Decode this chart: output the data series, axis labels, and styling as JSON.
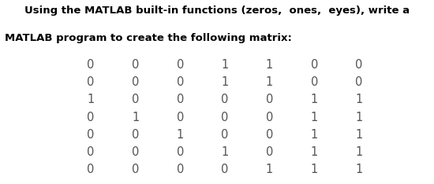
{
  "title_line1": "Using the MATLAB built-in functions (zeros,  ones,  eyes), write a",
  "title_line2": "MATLAB program to create the following matrix:",
  "matrix": [
    [
      0,
      0,
      0,
      1,
      1,
      0,
      0
    ],
    [
      0,
      0,
      0,
      1,
      1,
      0,
      0
    ],
    [
      1,
      0,
      0,
      0,
      0,
      1,
      1
    ],
    [
      0,
      1,
      0,
      0,
      0,
      1,
      1
    ],
    [
      0,
      0,
      1,
      0,
      0,
      1,
      1
    ],
    [
      0,
      0,
      0,
      1,
      0,
      1,
      1
    ],
    [
      0,
      0,
      0,
      0,
      1,
      1,
      1
    ]
  ],
  "background_color": "#ffffff",
  "text_color": "#000000",
  "title_fontsize": 9.5,
  "matrix_fontsize": 10.5,
  "matrix_color": "#555555"
}
